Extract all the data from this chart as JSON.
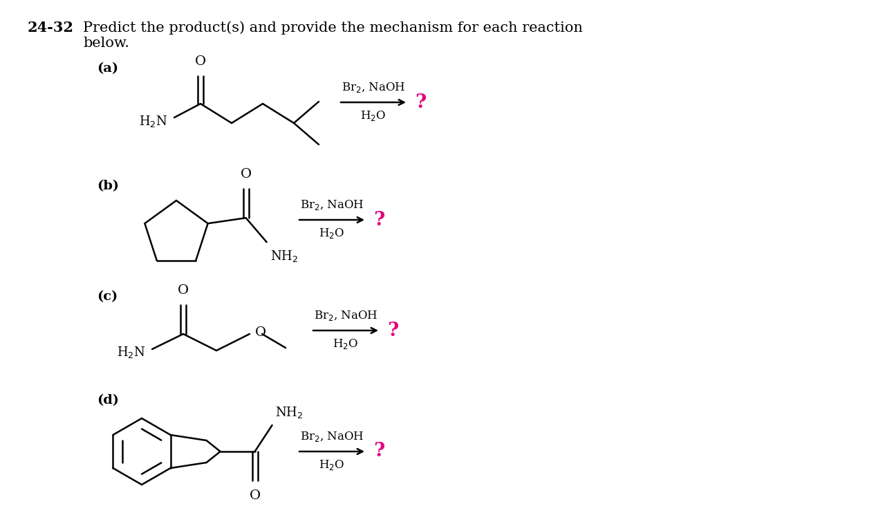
{
  "title_number": "24-32",
  "title_text": "Predict the product(s) and provide the mechanism for each reaction",
  "title_text2": "below.",
  "background_color": "#ffffff",
  "text_color": "#000000",
  "question_mark_color": "#e6007e",
  "labels": [
    "(a)",
    "(b)",
    "(c)",
    "(d)"
  ],
  "figsize": [
    12.8,
    7.68
  ],
  "dpi": 100
}
